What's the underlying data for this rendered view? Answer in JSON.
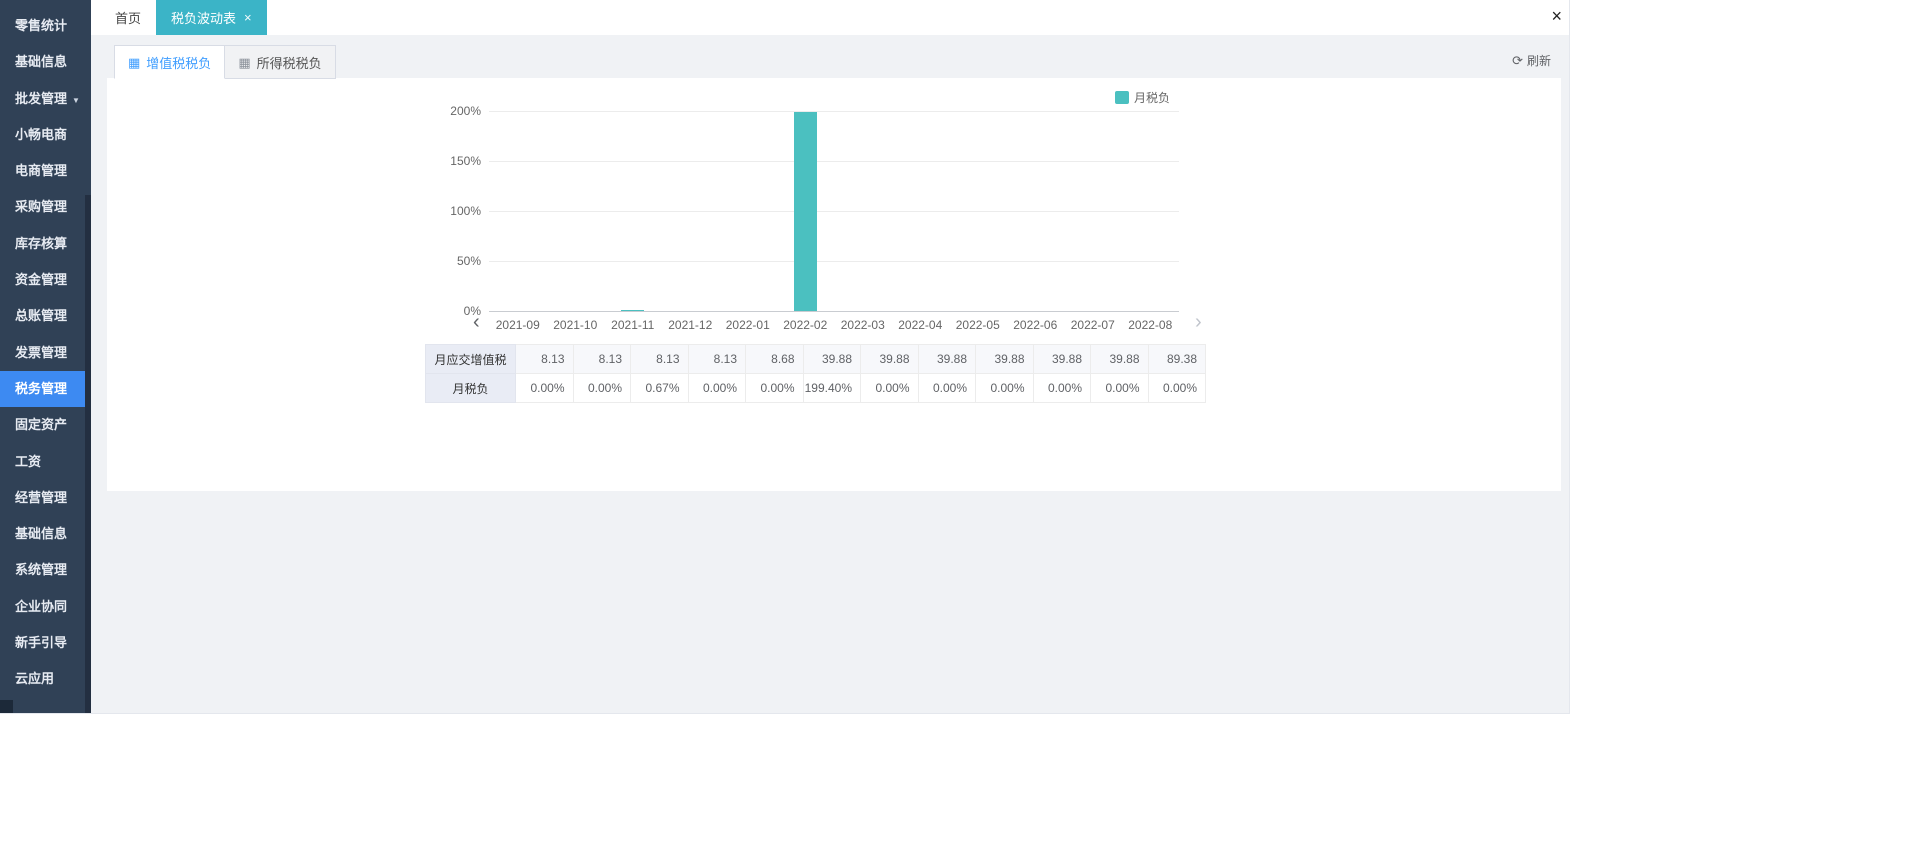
{
  "window": {
    "close_label": "×"
  },
  "sidebar": {
    "items": [
      {
        "label": "零售统计"
      },
      {
        "label": "基础信息"
      },
      {
        "label": "批发管理",
        "caret": true
      },
      {
        "label": "小畅电商"
      },
      {
        "label": "电商管理"
      },
      {
        "label": "采购管理"
      },
      {
        "label": "库存核算"
      },
      {
        "label": "资金管理"
      },
      {
        "label": "总账管理"
      },
      {
        "label": "发票管理"
      },
      {
        "label": "税务管理",
        "active": true
      },
      {
        "label": "固定资产"
      },
      {
        "label": "工资"
      },
      {
        "label": "经营管理"
      },
      {
        "label": "基础信息"
      },
      {
        "label": "系统管理"
      },
      {
        "label": "企业协同"
      },
      {
        "label": "新手引导"
      },
      {
        "label": "云应用"
      }
    ]
  },
  "tabbar": {
    "tabs": [
      {
        "label": "首页",
        "active": false,
        "closable": false
      },
      {
        "label": "税负波动表",
        "active": true,
        "closable": true,
        "close_label": "×"
      }
    ]
  },
  "panel": {
    "tabs": [
      {
        "label": "增值税税负",
        "active": true
      },
      {
        "label": "所得税税负",
        "active": false
      }
    ],
    "refresh_label": "刷新",
    "refresh_icon": "⟳"
  },
  "chart_data": {
    "type": "bar",
    "title": "",
    "categories": [
      "2021-09",
      "2021-10",
      "2021-11",
      "2021-12",
      "2022-01",
      "2022-02",
      "2022-03",
      "2022-04",
      "2022-05",
      "2022-06",
      "2022-07",
      "2022-08"
    ],
    "series": [
      {
        "name": "月税负",
        "values": [
          0,
          0,
          0.67,
          0,
          0,
          199.4,
          0,
          0,
          0,
          0,
          0,
          0
        ]
      }
    ],
    "ylim": [
      0,
      200
    ],
    "ytick_values": [
      0,
      50,
      100,
      150,
      200
    ],
    "ytick_labels": [
      "0%",
      "50%",
      "100%",
      "150%",
      "200%"
    ],
    "legend_position": "top-right",
    "grid": true,
    "bar_color": "#4bc0c0",
    "prev_arrow": "‹",
    "next_arrow": "›"
  },
  "table": {
    "rows": [
      {
        "label": "月应交增值税",
        "values": [
          "8.13",
          "8.13",
          "8.13",
          "8.13",
          "8.68",
          "39.88",
          "39.88",
          "39.88",
          "39.88",
          "39.88",
          "39.88",
          "89.38"
        ]
      },
      {
        "label": "月税负",
        "values": [
          "0.00%",
          "0.00%",
          "0.67%",
          "0.00%",
          "0.00%",
          "199.40%",
          "0.00%",
          "0.00%",
          "0.00%",
          "0.00%",
          "0.00%",
          "0.00%"
        ]
      }
    ]
  },
  "colors": {
    "accent_blue": "#409eff",
    "active_tab_teal": "#3bb4c7",
    "bar_teal": "#4bc0c0",
    "sidebar_bg": "#304156",
    "page_bg": "#f0f2f5"
  }
}
